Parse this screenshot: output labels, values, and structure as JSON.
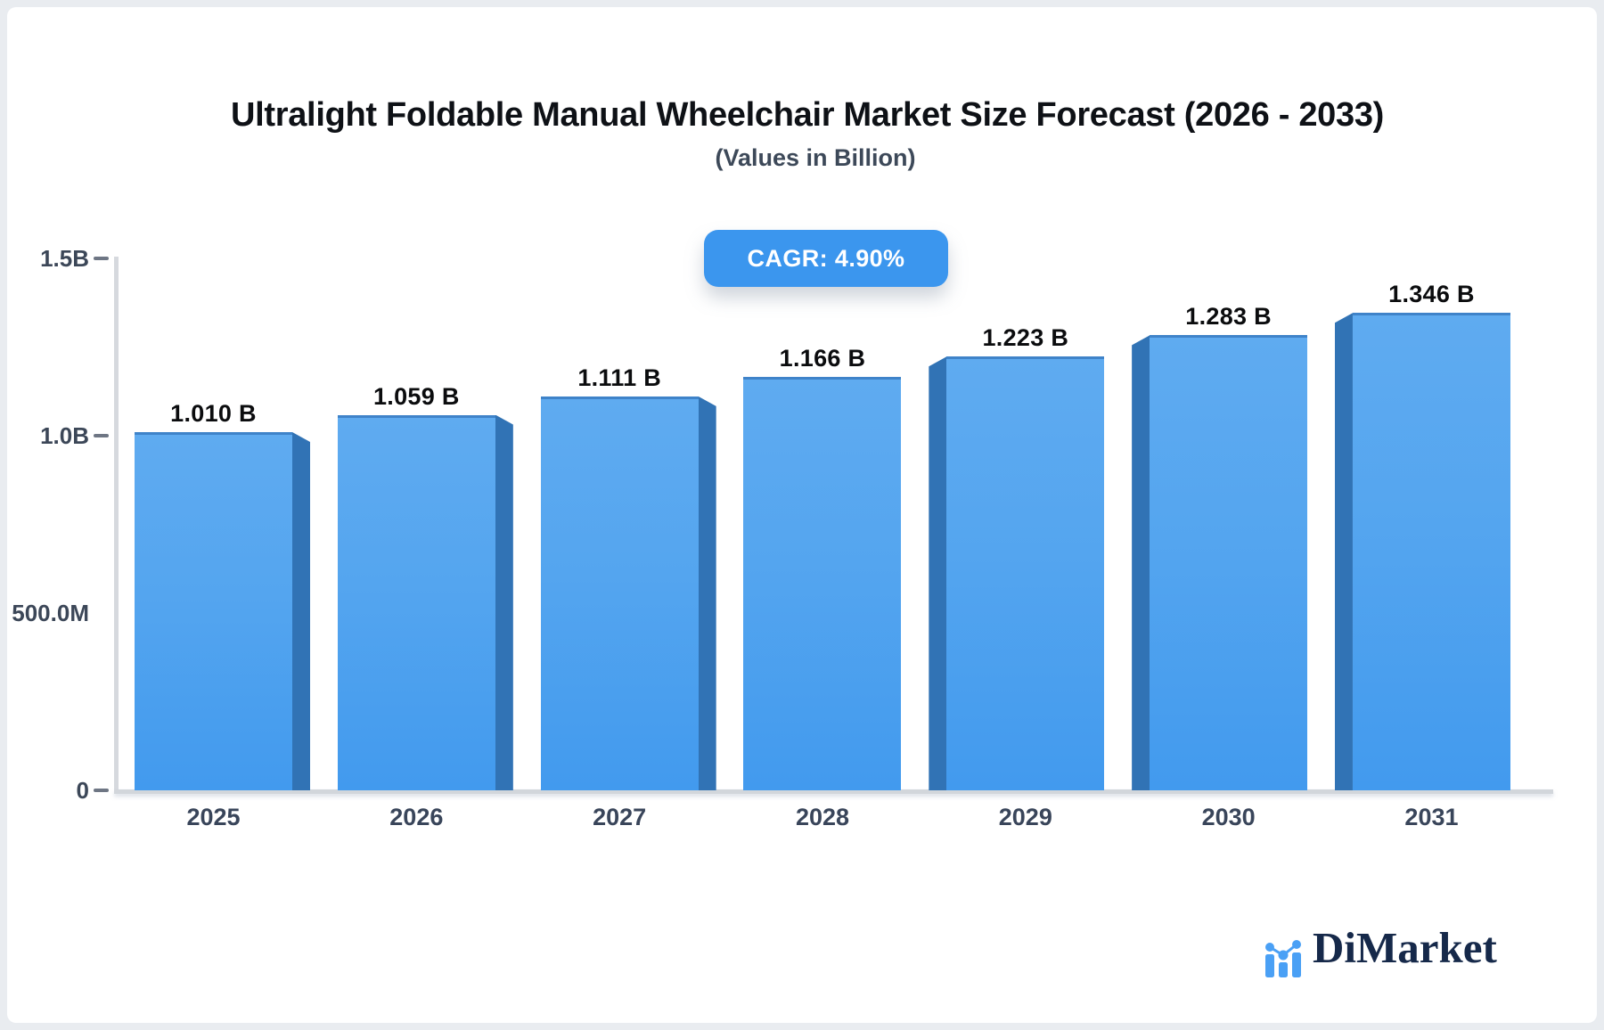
{
  "header": {
    "title": "Ultralight Foldable Manual Wheelchair Market Size Forecast (2026 - 2033)",
    "subtitle": "(Values in Billion)"
  },
  "badge": {
    "label": "CAGR: 4.90%"
  },
  "chart_data": {
    "type": "bar",
    "title": "Ultralight Foldable Manual Wheelchair Market Size Forecast (2026 - 2033)",
    "subtitle": "(Values in Billion)",
    "unit": "Billion USD",
    "cagr": "4.90%",
    "categories": [
      "2025",
      "2026",
      "2027",
      "2028",
      "2029",
      "2030",
      "2031"
    ],
    "values": [
      1.01,
      1.059,
      1.111,
      1.166,
      1.223,
      1.283,
      1.346
    ],
    "bar_labels": [
      "1.010 B",
      "1.059 B",
      "1.111 B",
      "1.166 B",
      "1.223 B",
      "1.283 B",
      "1.346 B"
    ],
    "ylim": [
      0,
      1.5
    ],
    "yticks": [
      {
        "label": "0",
        "value": 0,
        "dash": true
      },
      {
        "label": "500.0M",
        "value": 0.5,
        "dash": false
      },
      {
        "label": "1.0B",
        "value": 1.0,
        "dash": true
      },
      {
        "label": "1.5B",
        "value": 1.5,
        "dash": true
      }
    ],
    "grid": false,
    "legend": "none"
  },
  "logo": {
    "text": "DiMarket",
    "icon": "bar-line-chart-icon"
  },
  "colors": {
    "accent_blue": "#3b96ee",
    "bar_top": "#5fabf0",
    "bar_bottom": "#429aee",
    "bar_side": "#3173b5",
    "axis_gray": "#d4d7dc",
    "label_dark": "#0b0c0e",
    "axis_text": "#3c4758",
    "logo_navy": "#16294a",
    "logo_blue": "#4aa0f5"
  }
}
